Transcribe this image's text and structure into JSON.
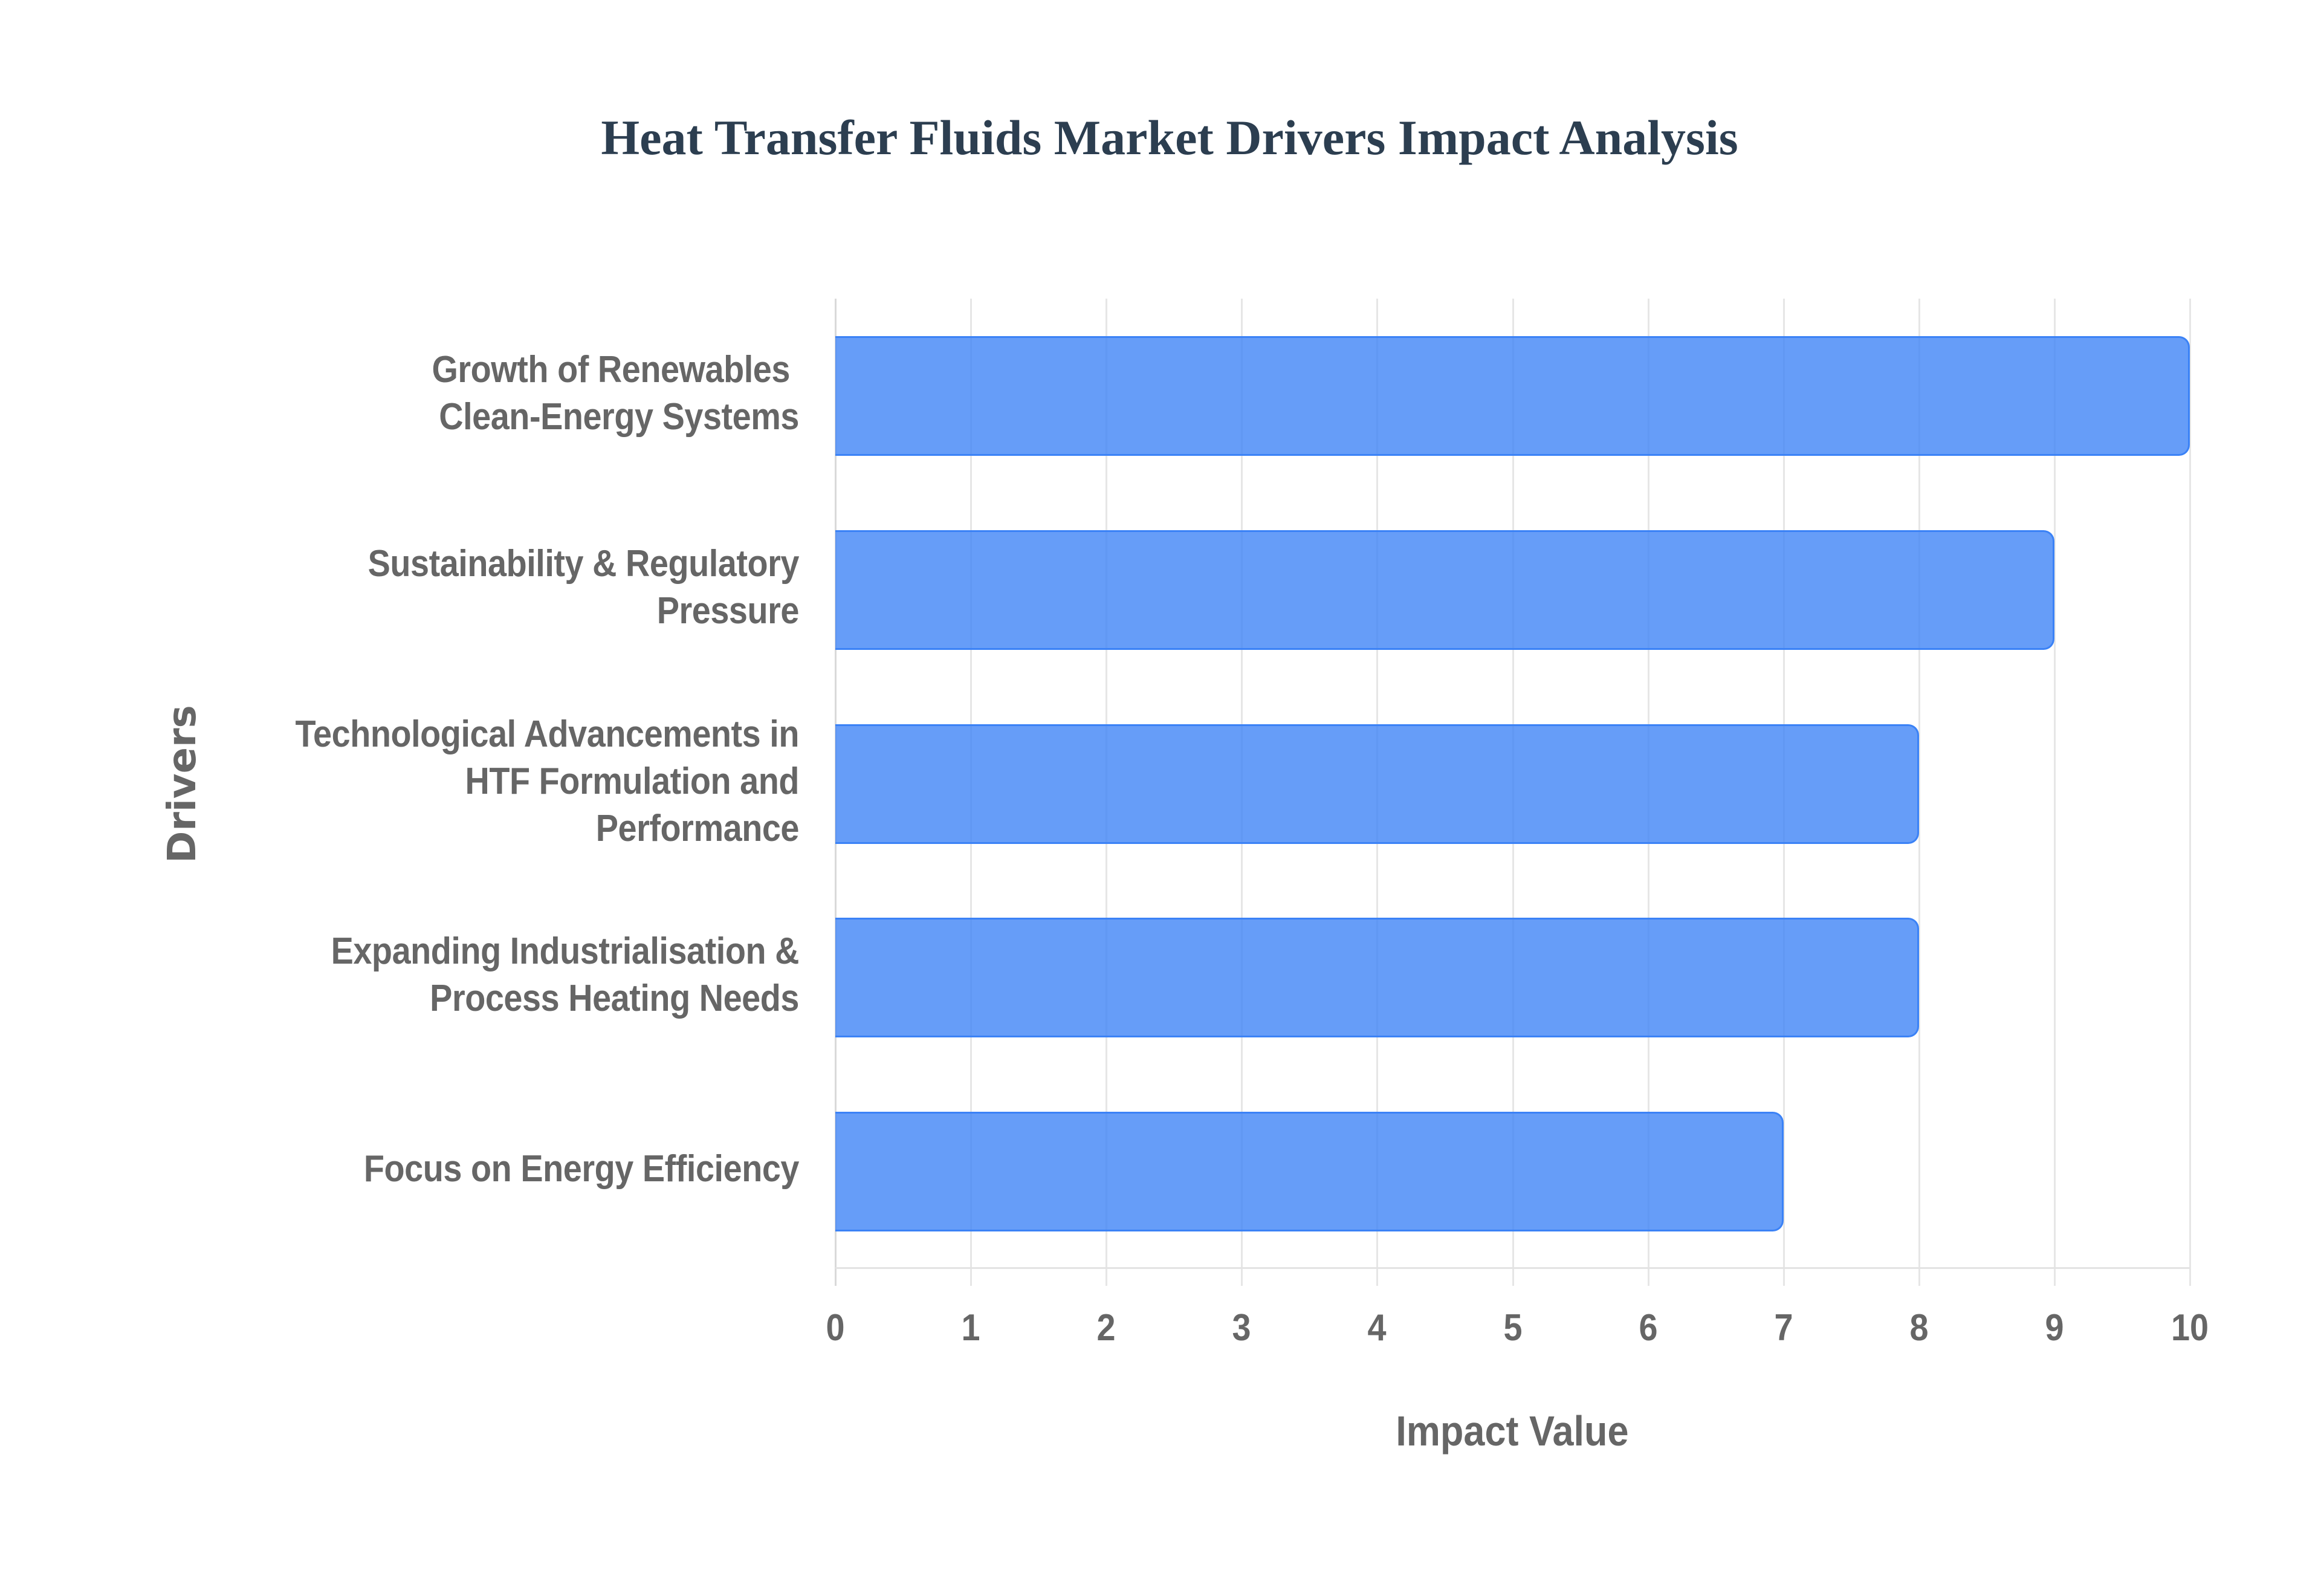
{
  "title": "Heat Transfer Fluids Market Drivers Impact Analysis",
  "colors": {
    "title": "#2C3E50",
    "bar_fill": "#639BF5",
    "bar_border": "#3B82F6",
    "axis_text": "#666666",
    "grid": "#E6E6E6"
  },
  "axes": {
    "x_title": "Impact Value",
    "y_title": "Drivers",
    "x_ticks": [
      "0",
      "1",
      "2",
      "3",
      "4",
      "5",
      "6",
      "7",
      "8",
      "9",
      "10"
    ]
  },
  "bars": [
    {
      "label_lines": [
        "Growth of Renewables ",
        "Clean-Energy Systems"
      ],
      "value": 10
    },
    {
      "label_lines": [
        "Sustainability & Regulatory",
        "Pressure"
      ],
      "value": 9
    },
    {
      "label_lines": [
        "Technological Advancements in",
        "HTF Formulation and",
        "Performance"
      ],
      "value": 8
    },
    {
      "label_lines": [
        "Expanding Industrialisation &",
        "Process Heating Needs"
      ],
      "value": 8
    },
    {
      "label_lines": [
        "Focus on Energy Efficiency"
      ],
      "value": 7
    }
  ],
  "chart_data": {
    "type": "bar",
    "orientation": "horizontal",
    "title": "Heat Transfer Fluids Market Drivers Impact Analysis",
    "categories": [
      "Growth of Renewables Clean-Energy Systems",
      "Sustainability & Regulatory Pressure",
      "Technological Advancements in HTF Formulation and Performance",
      "Expanding Industrialisation & Process Heating Needs",
      "Focus on Energy Efficiency"
    ],
    "values": [
      10,
      9,
      8,
      8,
      7
    ],
    "xlabel": "Impact Value",
    "ylabel": "Drivers",
    "xlim": [
      0,
      10
    ],
    "x_ticks": [
      0,
      1,
      2,
      3,
      4,
      5,
      6,
      7,
      8,
      9,
      10
    ],
    "grid": {
      "vertical": true,
      "horizontal": false
    },
    "legend": null
  }
}
